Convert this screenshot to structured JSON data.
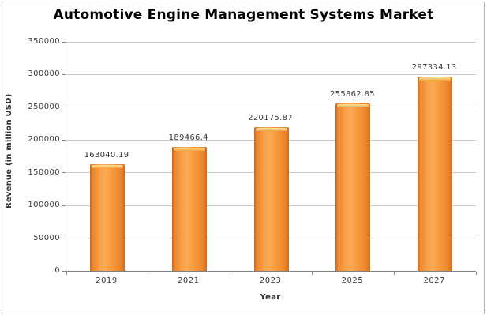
{
  "chart_data": {
    "type": "bar",
    "title": "Automotive Engine Management Systems Market",
    "xlabel": "Year",
    "ylabel": "Revenue (in million USD)",
    "categories": [
      "2019",
      "2021",
      "2023",
      "2025",
      "2027"
    ],
    "values": [
      163040.19,
      189466.4,
      220175.87,
      255862.85,
      297334.13
    ],
    "value_labels": [
      "163040.19",
      "189466.4",
      "220175.87",
      "255862.85",
      "297334.13"
    ],
    "ylim": [
      0,
      350000
    ],
    "ytick_step": 50000,
    "ytick_labels": [
      "0",
      "50000",
      "100000",
      "150000",
      "200000",
      "250000",
      "300000",
      "350000"
    ],
    "grid": true,
    "legend": "none",
    "colors": {
      "bar_main": "#F79B3F",
      "bar_edge_dark": "#C4641C",
      "bar_bevel_light": "#FDE0A6",
      "gridline": "#C6C6C6",
      "axis": "#808080",
      "text": "#383838",
      "title_text": "#000000",
      "outer_border": "#B4B4B4",
      "background": "#FFFFFF"
    }
  }
}
